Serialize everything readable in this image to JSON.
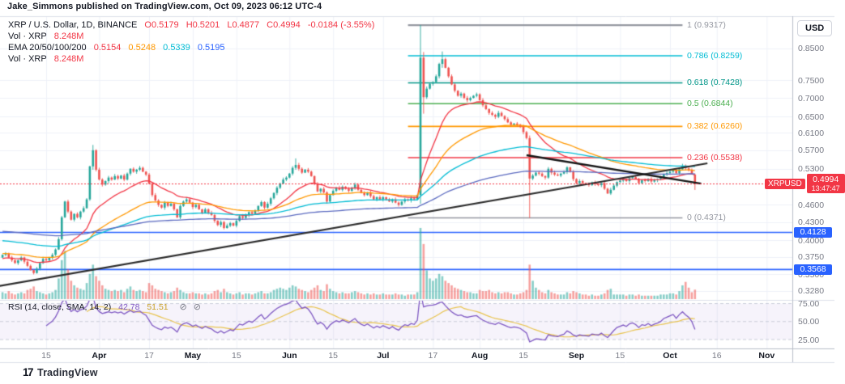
{
  "header": {
    "title": "Jake_Simmons published on TradingView.com, Oct 09, 2023 06:12 UTC-4"
  },
  "legend": {
    "symbol": "XRP / U.S. Dollar, 1D, BINANCE",
    "ohlc_parts": [
      "O0.5179",
      "H0.5201",
      "L0.4877",
      "C0.4994",
      "-0.0184 (-3.55%)"
    ],
    "vol_label": "Vol · XRP",
    "vol_value": "8.248M",
    "ema_label": "EMA 20/50/100/200",
    "ema_values": [
      "0.5154",
      "0.5248",
      "0.5339",
      "0.5195"
    ],
    "vol2_label": "Vol · XRP",
    "vol2_value": "8.248M"
  },
  "rsi_legend": {
    "label": "RSI (14, close, SMA, 14, 2)",
    "value": "42.78",
    "ma_value": "51.51",
    "hidden_icon": "⊘"
  },
  "axis": {
    "currency": "USD",
    "price_labels": [
      "0.8500",
      "0.7500",
      "0.7000",
      "0.6500",
      "0.6100",
      "0.5700",
      "0.5300",
      "0.4600",
      "0.4300",
      "0.4000",
      "0.3750",
      "0.3500",
      "0.3280"
    ],
    "rsi_labels": [
      {
        "text": "75.00",
        "value": 75
      },
      {
        "text": "50.00",
        "value": 50
      },
      {
        "text": "25.00",
        "value": 25
      }
    ],
    "price_badge": {
      "symbol": "XRPUSD",
      "price": "0.4994",
      "countdown": "13:47:47",
      "color": "#f23645"
    },
    "level_badges": [
      {
        "text": "0.4128",
        "price": 0.4128,
        "color": "#2962ff"
      },
      {
        "text": "0.3568",
        "price": 0.3568,
        "color": "#2962ff"
      }
    ]
  },
  "time_axis": {
    "ticks": [
      {
        "label": "15",
        "i": 14,
        "major": false
      },
      {
        "label": "Apr",
        "i": 31,
        "major": true
      },
      {
        "label": "17",
        "i": 47,
        "major": false
      },
      {
        "label": "May",
        "i": 61,
        "major": true
      },
      {
        "label": "15",
        "i": 75,
        "major": false
      },
      {
        "label": "Jun",
        "i": 92,
        "major": true
      },
      {
        "label": "15",
        "i": 106,
        "major": false
      },
      {
        "label": "Jul",
        "i": 122,
        "major": true
      },
      {
        "label": "17",
        "i": 138,
        "major": false
      },
      {
        "label": "Aug",
        "i": 153,
        "major": true
      },
      {
        "label": "15",
        "i": 167,
        "major": false
      },
      {
        "label": "Sep",
        "i": 184,
        "major": true
      },
      {
        "label": "15",
        "i": 198,
        "major": false
      },
      {
        "label": "Oct",
        "i": 214,
        "major": true
      },
      {
        "label": "16",
        "i": 229,
        "major": false
      },
      {
        "label": "Nov",
        "i": 245,
        "major": true
      }
    ]
  },
  "footer": {
    "brand_mark": "17",
    "brand": "TradingView"
  },
  "chart_data": {
    "type": "candlestick",
    "title": "XRP / U.S. Dollar, 1D, BINANCE",
    "start_date": "2023-03-01",
    "end_date": "2023-10-09",
    "last_bar": {
      "open": 0.5179,
      "high": 0.5201,
      "low": 0.4877,
      "close": 0.4994,
      "change": -0.0184,
      "change_pct": -3.55,
      "volume_m": 8.248
    },
    "price_axis_scale": "log",
    "colors": {
      "up": "#26a69a",
      "down": "#ef5350",
      "vol_up": "rgba(38,166,154,0.55)",
      "vol_down": "rgba(239,83,80,0.55)",
      "grid": "#eef1f8",
      "separator": "#dde1ea",
      "current_price": "#f23645",
      "rsi": "#7e57c2",
      "rsi_ma": "#e8c34f",
      "rsi_band": "rgba(126,87,194,0.07)"
    },
    "closes": [
      0.378,
      0.38,
      0.374,
      0.37,
      0.366,
      0.37,
      0.374,
      0.368,
      0.362,
      0.356,
      0.352,
      0.358,
      0.366,
      0.372,
      0.37,
      0.374,
      0.378,
      0.386,
      0.402,
      0.438,
      0.466,
      0.448,
      0.434,
      0.444,
      0.438,
      0.448,
      0.454,
      0.47,
      0.535,
      0.57,
      0.528,
      0.508,
      0.498,
      0.505,
      0.512,
      0.508,
      0.515,
      0.51,
      0.516,
      0.508,
      0.52,
      0.53,
      0.524,
      0.528,
      0.532,
      0.524,
      0.518,
      0.5,
      0.478,
      0.468,
      0.46,
      0.455,
      0.464,
      0.458,
      0.462,
      0.452,
      0.438,
      0.458,
      0.466,
      0.47,
      0.464,
      0.456,
      0.46,
      0.452,
      0.446,
      0.452,
      0.446,
      0.442,
      0.432,
      0.425,
      0.43,
      0.42,
      0.424,
      0.428,
      0.424,
      0.432,
      0.44,
      0.437,
      0.442,
      0.447,
      0.444,
      0.45,
      0.458,
      0.465,
      0.455,
      0.462,
      0.472,
      0.482,
      0.492,
      0.5,
      0.508,
      0.512,
      0.52,
      0.532,
      0.538,
      0.53,
      0.522,
      0.528,
      0.524,
      0.515,
      0.5,
      0.485,
      0.49,
      0.483,
      0.466,
      0.478,
      0.486,
      0.492,
      0.488,
      0.494,
      0.49,
      0.486,
      0.492,
      0.498,
      0.488,
      0.482,
      0.478,
      0.482,
      0.476,
      0.47,
      0.474,
      0.47,
      0.474,
      0.47,
      0.466,
      0.47,
      0.464,
      0.46,
      0.466,
      0.47,
      0.468,
      0.472,
      0.47,
      0.478,
      0.82,
      0.702,
      0.726,
      0.74,
      0.745,
      0.762,
      0.8,
      0.815,
      0.788,
      0.762,
      0.738,
      0.72,
      0.706,
      0.712,
      0.7,
      0.694,
      0.7,
      0.706,
      0.71,
      0.694,
      0.68,
      0.67,
      0.66,
      0.655,
      0.65,
      0.66,
      0.652,
      0.644,
      0.636,
      0.63,
      0.633,
      0.63,
      0.625,
      0.612,
      0.598,
      0.51,
      0.516,
      0.522,
      0.52,
      0.515,
      0.512,
      0.53,
      0.522,
      0.518,
      0.516,
      0.52,
      0.523,
      0.533,
      0.524,
      0.509,
      0.501,
      0.505,
      0.501,
      0.499,
      0.497,
      0.502,
      0.499,
      0.497,
      0.501,
      0.49,
      0.481,
      0.488,
      0.496,
      0.503,
      0.506,
      0.509,
      0.505,
      0.511,
      0.513,
      0.509,
      0.501,
      0.507,
      0.505,
      0.509,
      0.504,
      0.507,
      0.509,
      0.512,
      0.518,
      0.521,
      0.524,
      0.527,
      0.521,
      0.529,
      0.536,
      0.531,
      0.527,
      0.519,
      0.4994
    ],
    "volumes_m": [
      6,
      5,
      7,
      5,
      4,
      5,
      6,
      5,
      8,
      9,
      11,
      7,
      6,
      5,
      4,
      5,
      6,
      8,
      18,
      34,
      42,
      26,
      16,
      12,
      10,
      9,
      8,
      14,
      22,
      30,
      20,
      16,
      12,
      9,
      8,
      7,
      8,
      7,
      8,
      6,
      9,
      11,
      8,
      7,
      8,
      7,
      6,
      14,
      12,
      9,
      8,
      7,
      6,
      5,
      6,
      7,
      10,
      8,
      6,
      5,
      5,
      6,
      5,
      5,
      4,
      5,
      4,
      5,
      7,
      8,
      6,
      9,
      6,
      5,
      4,
      5,
      6,
      4,
      5,
      5,
      4,
      5,
      6,
      7,
      5,
      5,
      6,
      8,
      9,
      10,
      9,
      8,
      10,
      12,
      11,
      9,
      8,
      7,
      6,
      8,
      10,
      12,
      8,
      7,
      13,
      9,
      7,
      6,
      5,
      6,
      5,
      5,
      6,
      7,
      6,
      5,
      4,
      5,
      4,
      5,
      4,
      4,
      5,
      4,
      4,
      4,
      5,
      4,
      4,
      3,
      4,
      4,
      4,
      6,
      62,
      48,
      25,
      18,
      16,
      18,
      22,
      20,
      16,
      14,
      12,
      10,
      9,
      8,
      7,
      6,
      6,
      5,
      5,
      8,
      7,
      7,
      8,
      6,
      5,
      6,
      5,
      6,
      6,
      5,
      4,
      4,
      5,
      6,
      8,
      30,
      16,
      10,
      8,
      6,
      5,
      8,
      6,
      5,
      4,
      4,
      4,
      6,
      5,
      7,
      6,
      5,
      4,
      4,
      3,
      4,
      3,
      3,
      4,
      5,
      8,
      9,
      4,
      4,
      4,
      4,
      3,
      4,
      4,
      3,
      4,
      3,
      3,
      3,
      3,
      3,
      3,
      4,
      4,
      4,
      5,
      5,
      4,
      7,
      12,
      15,
      10,
      6,
      8.248
    ],
    "ohlc_overrides": {
      "29": [
        0.535,
        0.582,
        0.528,
        0.57
      ],
      "94": [
        0.532,
        0.552,
        0.528,
        0.538
      ],
      "134": [
        0.478,
        0.9317,
        0.462,
        0.82
      ],
      "135": [
        0.82,
        0.838,
        0.658,
        0.702
      ],
      "141": [
        0.8,
        0.84,
        0.788,
        0.815
      ],
      "169": [
        0.598,
        0.604,
        0.4371,
        0.51
      ],
      "222": [
        0.5179,
        0.5201,
        0.4877,
        0.4994
      ]
    },
    "emas": {
      "periods": [
        20,
        50,
        100,
        200
      ],
      "seeds": [
        0.372,
        0.38,
        0.4,
        0.415
      ],
      "colors": [
        "#f23645",
        "#ff9800",
        "#00bcd4",
        "#5c6bc0"
      ],
      "current": [
        0.5154,
        0.5248,
        0.5339,
        0.5195
      ]
    },
    "fib_retracement": {
      "from_i": 130,
      "to_i": 218,
      "levels": [
        {
          "ratio": "1",
          "price": 0.9317,
          "label": "1 (0.9317)",
          "color": "#9598a1"
        },
        {
          "ratio": "0.786",
          "price": 0.8259,
          "label": "0.786 (0.8259)",
          "color": "#00bcd4"
        },
        {
          "ratio": "0.618",
          "price": 0.7428,
          "label": "0.618 (0.7428)",
          "color": "#009688"
        },
        {
          "ratio": "0.5",
          "price": 0.6844,
          "label": "0.5 (0.6844)",
          "color": "#4caf50"
        },
        {
          "ratio": "0.382",
          "price": 0.626,
          "label": "0.382 (0.6260)",
          "color": "#ff9800"
        },
        {
          "ratio": "0.236",
          "price": 0.5538,
          "label": "0.236 (0.5538)",
          "color": "#f23645"
        },
        {
          "ratio": "0",
          "price": 0.4371,
          "label": "0 (0.4371)",
          "color": "#9598a1"
        }
      ]
    },
    "horizontal_lines": [
      {
        "price": 0.4128,
        "color": "#2962ff"
      },
      {
        "price": 0.3568,
        "color": "#2962ff"
      }
    ],
    "trend_lines": [
      {
        "name": "ascending-support",
        "from_i": -1,
        "from_price": 0.3345,
        "to_i": 226,
        "to_price": 0.5415,
        "color": "#2b2b2b",
        "width": 2.2
      },
      {
        "name": "descending-resistance",
        "from_i": 168,
        "from_price": 0.559,
        "to_i": 224,
        "to_price": 0.5,
        "color": "#161616",
        "width": 2.4
      }
    ],
    "current_price": 0.4994,
    "rsi": {
      "period": 14,
      "ma_period": 14,
      "current": 42.78,
      "ma_current": 51.51,
      "guide_lines": [
        75,
        50,
        25
      ]
    }
  }
}
